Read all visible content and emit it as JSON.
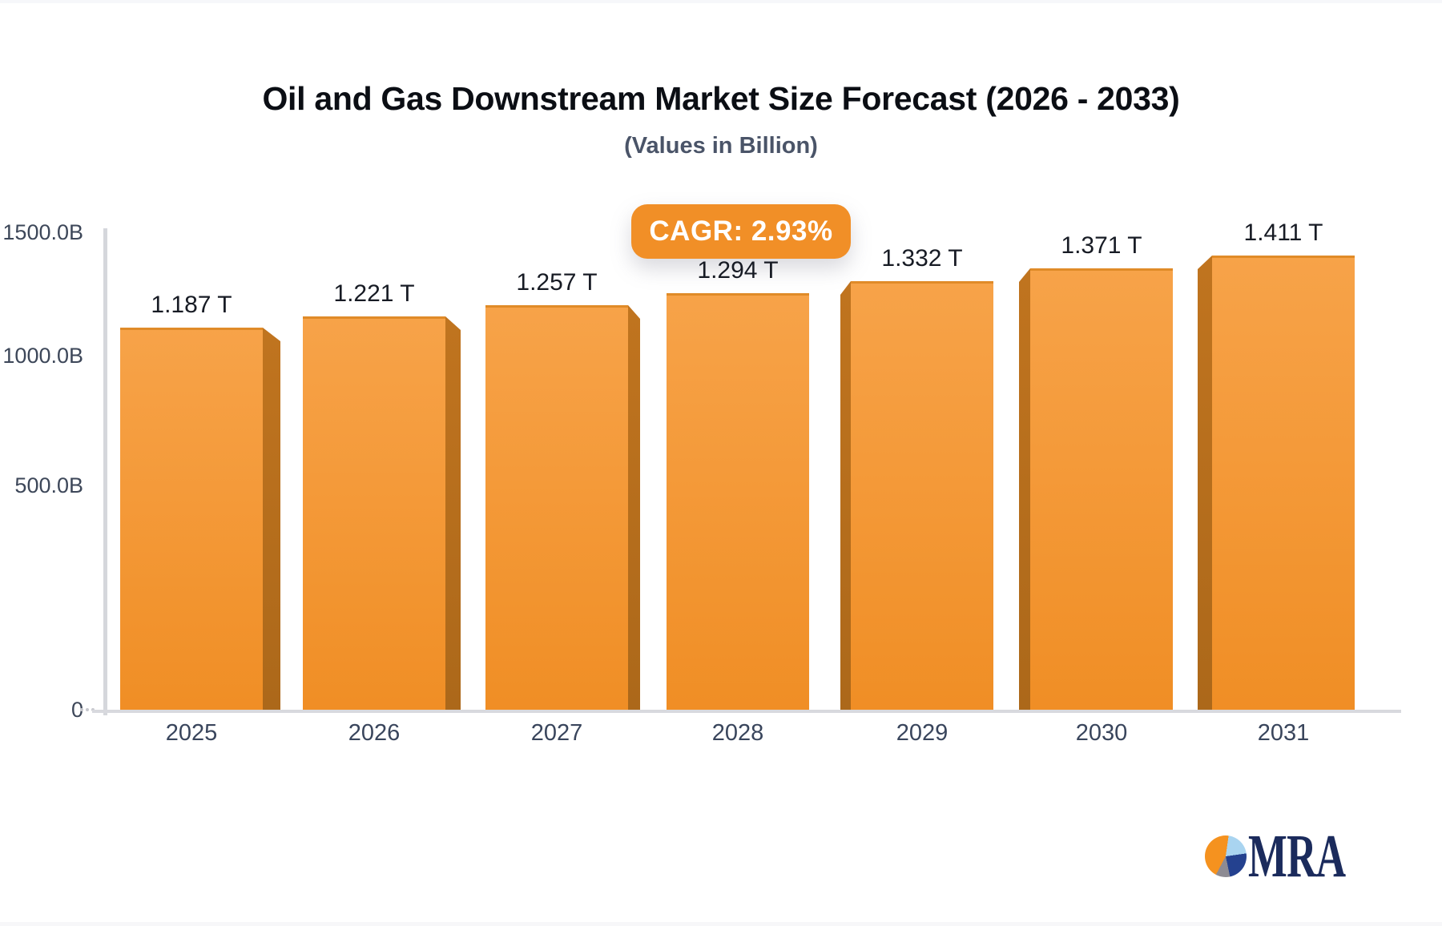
{
  "chart_data": {
    "type": "bar",
    "style": "3d-column-perspective",
    "title": "Oil and Gas Downstream Market Size Forecast (2026 - 2033)",
    "subtitle": "(Values in Billion)",
    "unit": "billion",
    "categories": [
      "2025",
      "2026",
      "2027",
      "2028",
      "2029",
      "2030",
      "2031"
    ],
    "values_billion": [
      1187,
      1221,
      1257,
      1294,
      1332,
      1371,
      1411
    ],
    "bar_labels": [
      "1.187 T",
      "1.221 T",
      "1.257 T",
      "1.294 T",
      "1.332 T",
      "1.371 T",
      "1.411 T"
    ],
    "annotation": "CAGR: 2.93%",
    "y_ticks": [
      "1500.0B",
      "1000.0B",
      "500.0B",
      "0"
    ],
    "ylim": [
      0,
      1500
    ],
    "xlabel": "",
    "ylabel": "",
    "grid": false,
    "legend": false,
    "bar_color_top": "#F7A349",
    "bar_color_bottom": "#F08E25",
    "bar_side_color": "#B86F1E",
    "badge_color": "#F18F27"
  },
  "logo": {
    "text": "MRA",
    "icon": "pie-chart-icon",
    "colors": {
      "orange": "#F5921F",
      "light_blue": "#A9D4F0",
      "navy": "#24418F",
      "gray": "#8D8B93",
      "text_navy": "#1B2B5C"
    }
  }
}
